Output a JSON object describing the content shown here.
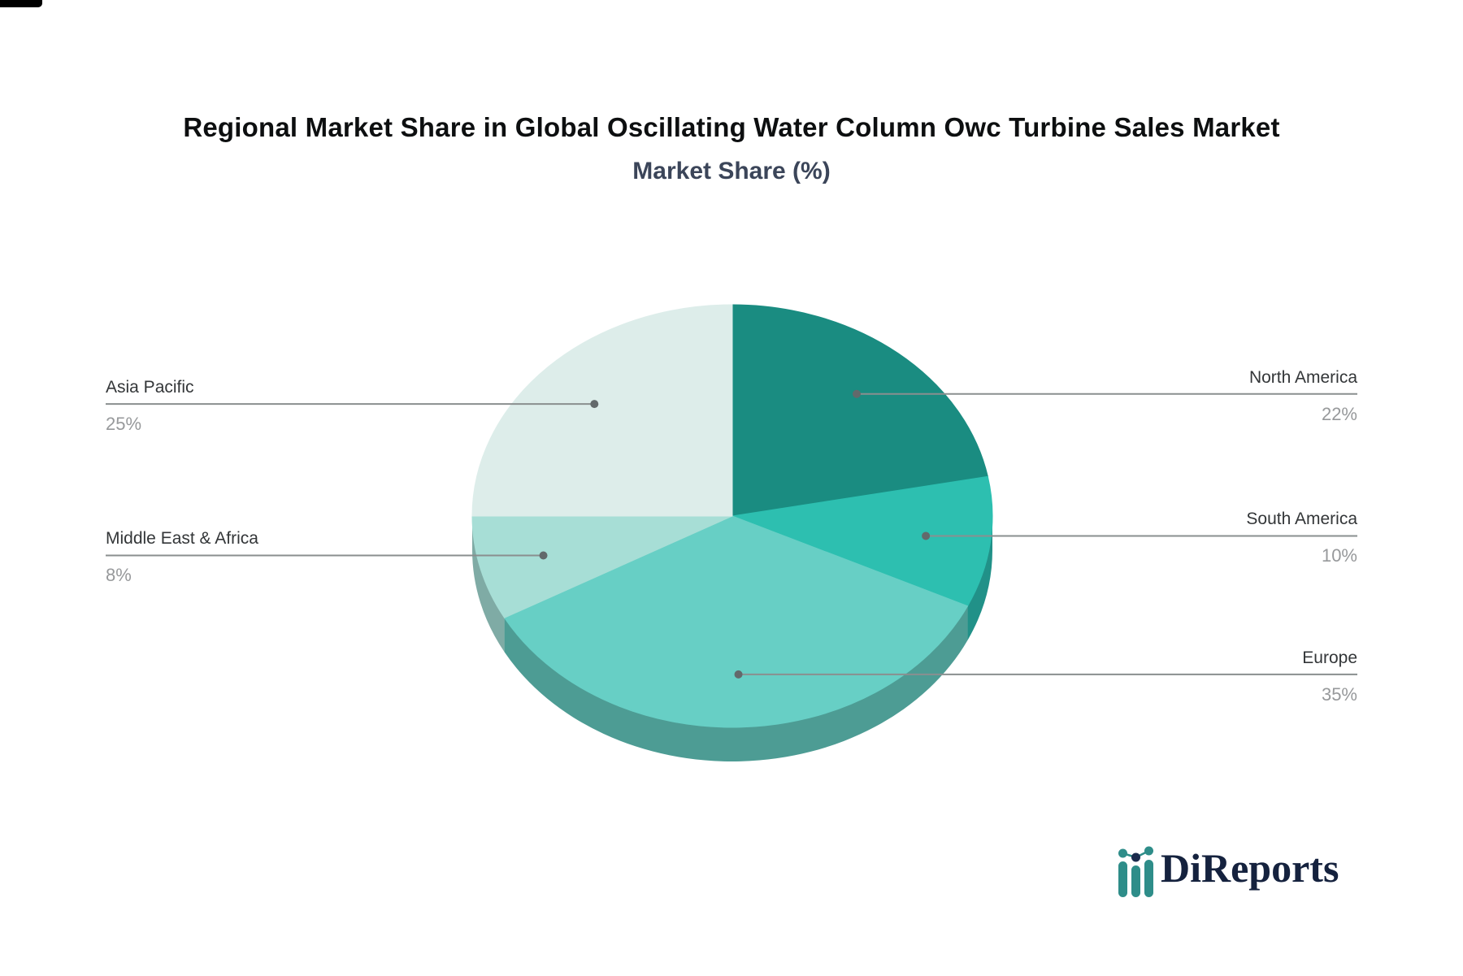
{
  "header": {
    "title": "Regional Market Share in Global Oscillating Water Column Owc Turbine Sales Market",
    "subtitle": "Market Share (%)"
  },
  "chart_data": {
    "type": "pie",
    "title": "Regional Market Share in Global Oscillating Water Column Owc Turbine Sales Market",
    "subtitle": "Market Share (%)",
    "unit": "%",
    "start_angle_deg": -90,
    "direction": "clockwise",
    "style": "3d-depth-pie",
    "series": [
      {
        "name": "North America",
        "value": 22,
        "label": "22%",
        "color": "#1A8C81",
        "rim_color": "#219188",
        "label_side": "right"
      },
      {
        "name": "South America",
        "value": 10,
        "label": "10%",
        "color": "#2DBFB0",
        "rim_color": "#219188",
        "label_side": "right"
      },
      {
        "name": "Europe",
        "value": 35,
        "label": "35%",
        "color": "#67CFC5",
        "rim_color": "#4D9C94",
        "label_side": "right"
      },
      {
        "name": "Middle East & Africa",
        "value": 8,
        "label": "8%",
        "color": "#A7DED6",
        "rim_color": "#7FABA5",
        "label_side": "left"
      },
      {
        "name": "Asia Pacific",
        "value": 25,
        "label": "25%",
        "color": "#DDEDEA",
        "rim_color": "#B9CFCB",
        "label_side": "left"
      }
    ],
    "legend": "none",
    "callout_line_color": "#8A8F8F",
    "callout_dot_color": "#63696B",
    "label_color": "#333638",
    "value_color": "#97999B"
  },
  "logo": {
    "text": "DiReports",
    "icon": "bar-line-chart-icon",
    "text_color": "#15223E",
    "icon_teal": "#2E8D89",
    "icon_navy": "#1B2B4D"
  }
}
